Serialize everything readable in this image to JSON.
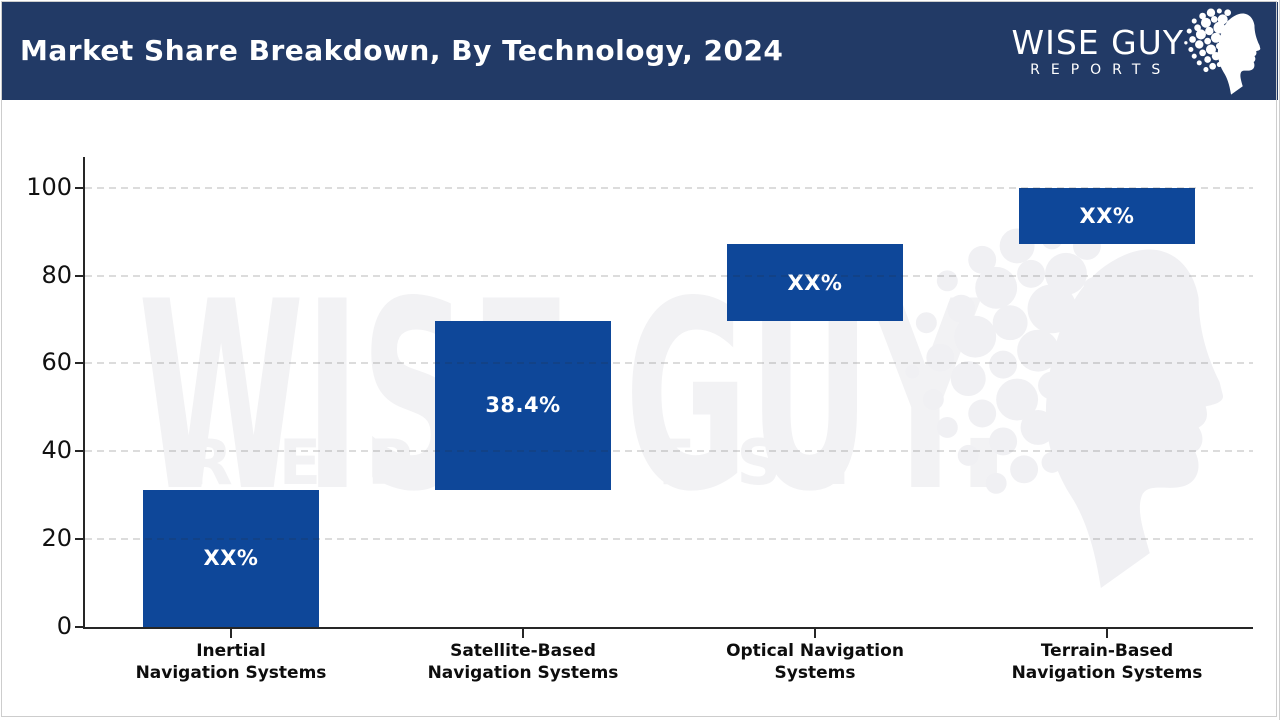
{
  "header": {
    "title": "Market Share Breakdown, By Technology, 2024",
    "logo": {
      "line1": "WISE GUY",
      "line2": "REPORTS"
    }
  },
  "watermark": {
    "line1": "WISE GUY.",
    "line2": "REPORTS."
  },
  "chart_data": {
    "type": "bar",
    "subtype": "waterfall",
    "title": "Market Share Breakdown, By Technology, 2024",
    "categories": [
      [
        "Inertial",
        "Navigation Systems"
      ],
      [
        "Satellite-Based",
        "Navigation Systems"
      ],
      [
        "Optical Navigation",
        "Systems"
      ],
      [
        "Terrain-Based",
        "Navigation Systems"
      ]
    ],
    "values": [
      31.3,
      38.4,
      17.4,
      12.9
    ],
    "cumulative": true,
    "segments": [
      {
        "from": 0,
        "to": 31.3,
        "label": "XX%"
      },
      {
        "from": 31.3,
        "to": 69.7,
        "label": "38.4%"
      },
      {
        "from": 69.7,
        "to": 87.1,
        "label": "XX%"
      },
      {
        "from": 87.1,
        "to": 100.0,
        "label": "XX%"
      }
    ],
    "bar_labels": [
      "XX%",
      "38.4%",
      "XX%",
      "XX%"
    ],
    "xlabel": "",
    "ylabel": "",
    "yticks": [
      0,
      20,
      40,
      60,
      80,
      100
    ],
    "ylim": [
      0,
      107
    ],
    "grid": "horizontal-dashed",
    "legend": "none",
    "colors": {
      "bar": "#0E4799",
      "header_bg": "#223A66",
      "grid": "#dedede",
      "axis": "#262626",
      "bar_label_text": "#ffffff",
      "watermark": "#f2f2f4"
    }
  }
}
